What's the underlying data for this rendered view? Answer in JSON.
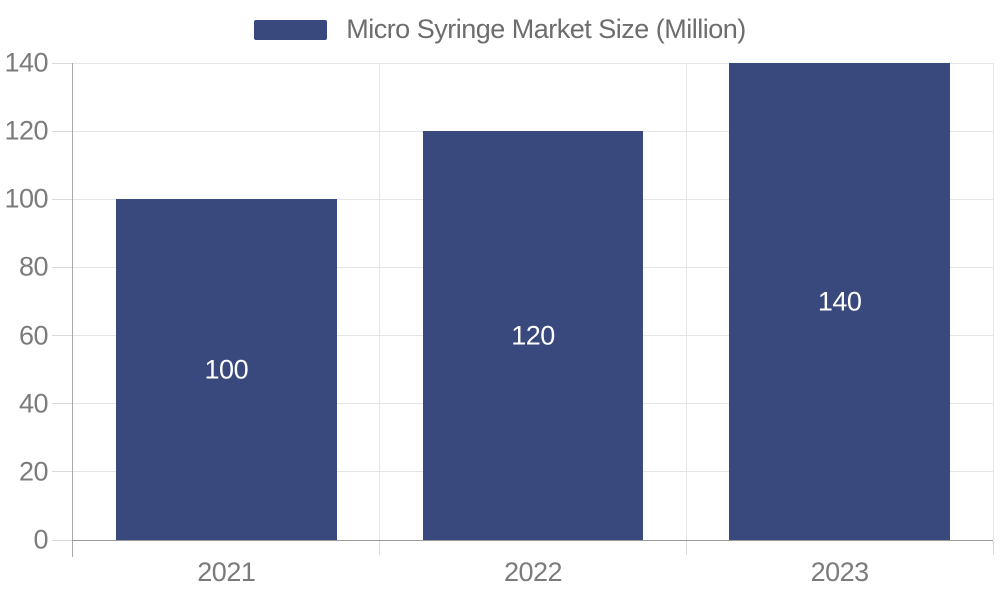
{
  "legend": {
    "label": "Micro Syringe Market Size (Million)"
  },
  "chart_data": {
    "type": "bar",
    "title": "Micro Syringe Market Size (Million)",
    "categories": [
      "2021",
      "2022",
      "2023"
    ],
    "values": [
      100,
      120,
      140
    ],
    "series": [
      {
        "name": "Micro Syringe Market Size (Million)",
        "values": [
          100,
          120,
          140
        ]
      }
    ],
    "value_labels": [
      "100",
      "120",
      "140"
    ],
    "xlabel": "",
    "ylabel": "",
    "ylim": [
      0,
      140
    ],
    "yticks": [
      0,
      20,
      40,
      60,
      80,
      100,
      120,
      140
    ],
    "bar_color": "#39487D",
    "value_label_color": "#FFFFFF",
    "axis_label_color": "#7B7B7B",
    "gridline_color": "#E6E6E6",
    "grid": true,
    "legend_position": "top",
    "background": "#FFFFFF"
  }
}
